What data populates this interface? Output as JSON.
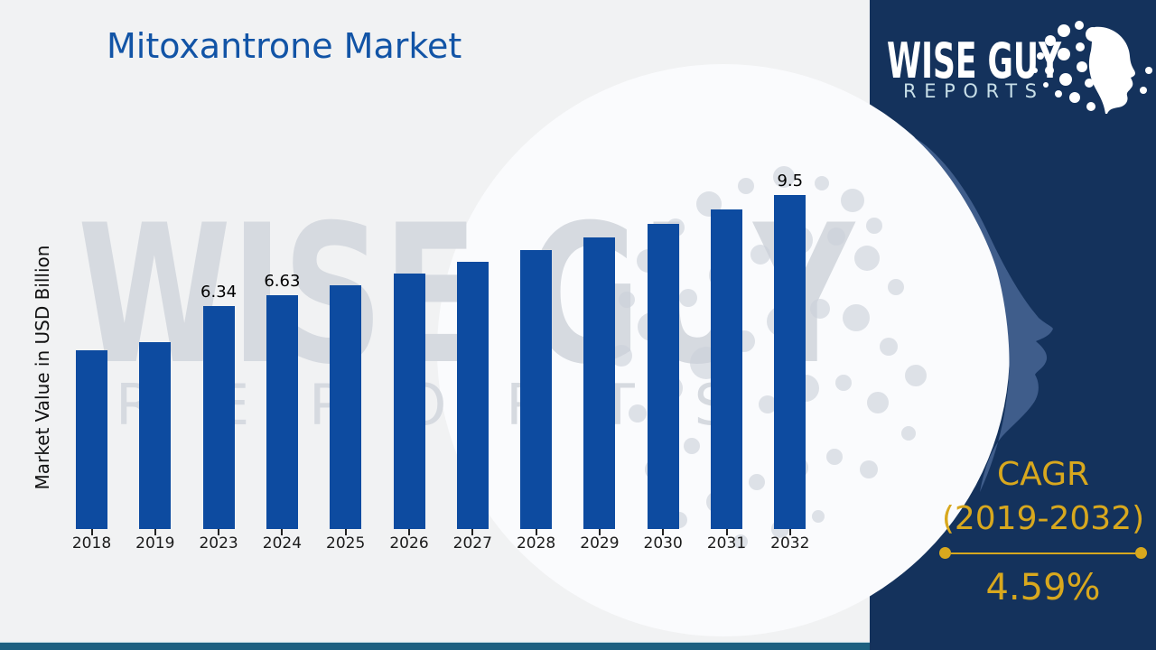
{
  "title": "Mitoxantrone Market",
  "watermark": {
    "line1": "WISE GUY",
    "line2": "REPORTS"
  },
  "logo": {
    "line1": "WISE GUY",
    "line2": "REPORTS"
  },
  "cagr": {
    "label": "CAGR",
    "range": "(2019-2032)",
    "value": "4.59%"
  },
  "chart_data": {
    "type": "bar",
    "title": "Mitoxantrone Market",
    "xlabel": "",
    "ylabel": "Market Value in USD Billion",
    "categories": [
      "2018",
      "2019",
      "2023",
      "2024",
      "2025",
      "2026",
      "2027",
      "2028",
      "2029",
      "2030",
      "2031",
      "2032"
    ],
    "values": [
      5.07,
      5.3,
      6.34,
      6.63,
      6.93,
      7.25,
      7.58,
      7.93,
      8.29,
      8.67,
      9.07,
      9.5
    ],
    "bar_labels": [
      "",
      "",
      "6.34",
      "6.63",
      "",
      "",
      "",
      "",
      "",
      "",
      "",
      "9.5"
    ],
    "ylim": [
      0,
      10
    ],
    "grid": false,
    "legend": null,
    "bar_color": "#0d4ba0"
  },
  "colors": {
    "bg": "#f1f2f3",
    "panel": "#14325c",
    "bar": "#0d4ba0",
    "gold": "#d8a81e",
    "teal": "#1d6080",
    "title": "#1254a6",
    "watermark": "#d6dae0",
    "dots": "#cbd1da",
    "circle": "#fafbfd",
    "face": "#3f5d8b",
    "ink": "#1b1b1b"
  }
}
